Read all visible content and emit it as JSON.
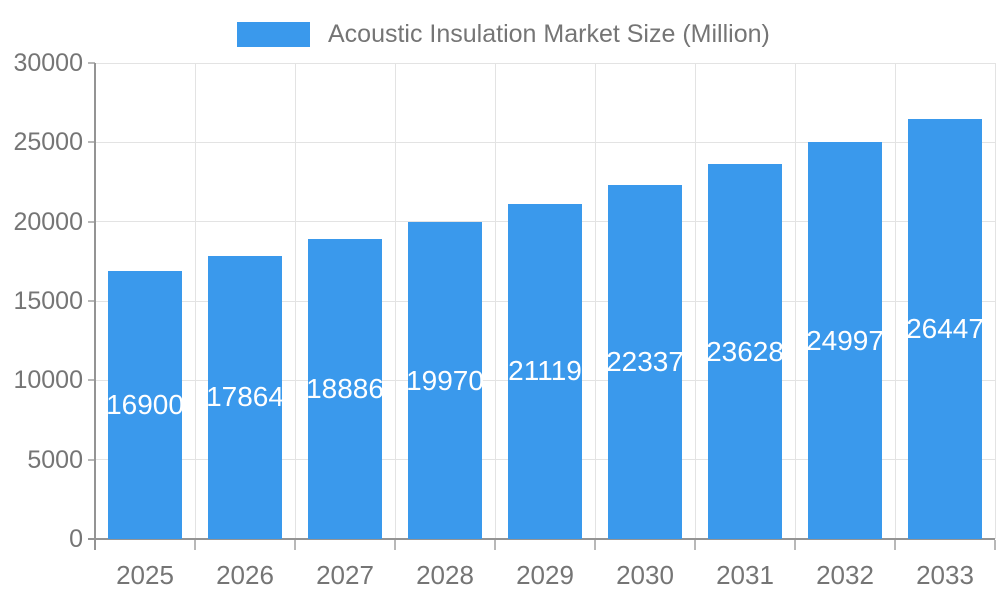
{
  "legend": {
    "label": "Acoustic Insulation Market Size (Million)"
  },
  "chart_data": {
    "type": "bar",
    "title": "Acoustic Insulation Market Size (Million)",
    "series_name": "Acoustic Insulation Market Size (Million)",
    "categories": [
      "2025",
      "2026",
      "2027",
      "2028",
      "2029",
      "2030",
      "2031",
      "2032",
      "2033"
    ],
    "values": [
      16900,
      17864,
      18886,
      19970,
      21119,
      22337,
      23628,
      24997,
      26447
    ],
    "xlabel": "",
    "ylabel": "",
    "ylim": [
      0,
      30000
    ],
    "yticks": [
      0,
      5000,
      10000,
      15000,
      20000,
      25000,
      30000
    ],
    "grid": true,
    "legend_position": "top",
    "value_labels_inside_bars": true,
    "colors": {
      "bar": "#3A99EC",
      "axis_line": "#949494",
      "gridline": "#e3e3e3",
      "tick_mark": "#b8b8b8",
      "tick_text": "#757575",
      "value_label": "#ffffff",
      "background": "#ffffff"
    }
  }
}
